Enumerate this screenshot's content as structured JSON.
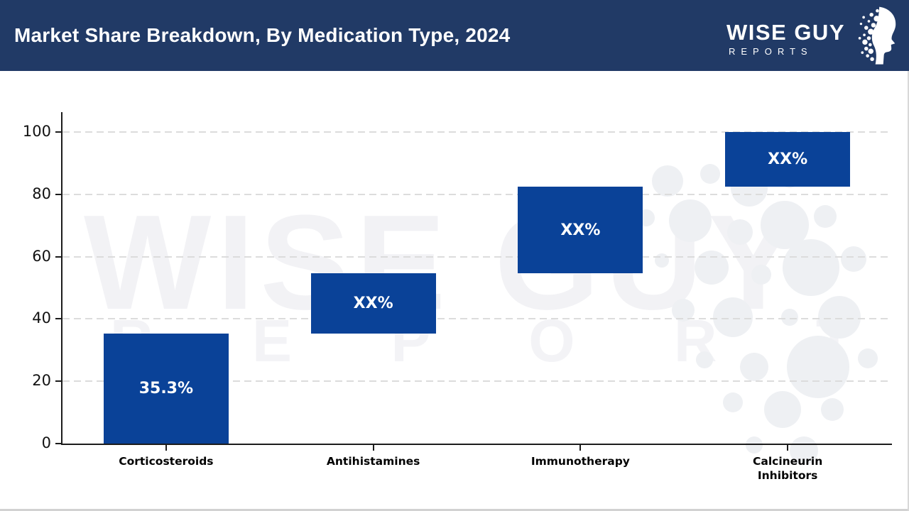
{
  "header": {
    "title": "Market Share Breakdown, By Medication Type, 2024",
    "bg_color": "#213a66",
    "logo": {
      "line1": "WISE GUY",
      "line2": "REPORTS"
    }
  },
  "watermark": {
    "line1": "WISE GUY",
    "line2": "R E P O R T S"
  },
  "chart_data": {
    "type": "bar",
    "subtype": "waterfall",
    "title": "Market Share Breakdown, By Medication Type, 2024",
    "categories": [
      "Corticosteroids",
      "Antihistamines",
      "Immunotherapy",
      "Calcineurin\nInhibitors"
    ],
    "segments": [
      {
        "category": "Corticosteroids",
        "start": 0,
        "end": 35.3,
        "label": "35.3%"
      },
      {
        "category": "Antihistamines",
        "start": 35.3,
        "end": 54.7,
        "label": "XX%"
      },
      {
        "category": "Immunotherapy",
        "start": 54.7,
        "end": 82.4,
        "label": "XX%"
      },
      {
        "category": "Calcineurin Inhibitors",
        "start": 82.4,
        "end": 100,
        "label": "XX%"
      }
    ],
    "xlabel": "",
    "ylabel": "",
    "ylim": [
      0,
      100
    ],
    "yticks": [
      0,
      20,
      40,
      60,
      80,
      100
    ],
    "grid": "horizontal dashed",
    "legend": "none",
    "bar_color": "#0a4298",
    "bar_label_color": "#ffffff"
  }
}
